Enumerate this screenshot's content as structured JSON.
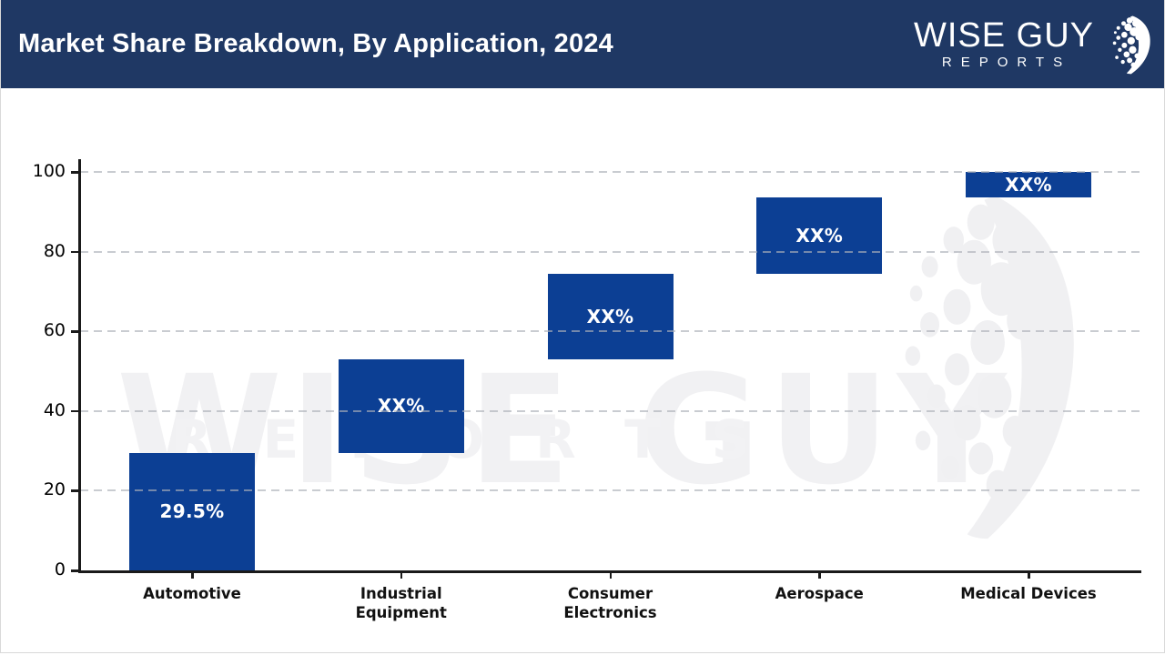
{
  "header": {
    "title": "Market Share Breakdown, By Application, 2024",
    "bg_color": "#1F3864",
    "logo": {
      "line1": "WISE GUY",
      "line2": "REPORTS"
    }
  },
  "watermark": {
    "line1": "WISE GUY",
    "line2": "REPORTS"
  },
  "chart_data": {
    "type": "bar",
    "subtype": "waterfall",
    "title": "Market Share Breakdown, By Application, 2024",
    "categories": [
      "Automotive",
      "Industrial Equipment",
      "Consumer Electronics",
      "Aerospace",
      "Medical Devices"
    ],
    "bars": [
      {
        "category": "Automotive",
        "label_lines": [
          "Automotive"
        ],
        "start": 0,
        "end": 29.5,
        "value": 29.5,
        "label": "29.5%"
      },
      {
        "category": "Industrial Equipment",
        "label_lines": [
          "Industrial",
          "Equipment"
        ],
        "start": 29.5,
        "end": 53,
        "value": 23.5,
        "label": "XX%"
      },
      {
        "category": "Consumer Electronics",
        "label_lines": [
          "Consumer",
          "Electronics"
        ],
        "start": 53,
        "end": 74.5,
        "value": 21.5,
        "label": "XX%"
      },
      {
        "category": "Aerospace",
        "label_lines": [
          "Aerospace"
        ],
        "start": 74.5,
        "end": 93.5,
        "value": 19,
        "label": "XX%"
      },
      {
        "category": "Medical Devices",
        "label_lines": [
          "Medical Devices"
        ],
        "start": 93.5,
        "end": 100,
        "value": 6.5,
        "label": "XX%"
      }
    ],
    "y_ticks": [
      0,
      20,
      40,
      60,
      80,
      100
    ],
    "ylim": [
      0,
      103
    ],
    "xlabel": "",
    "ylabel": "",
    "bar_color": "#0c3f94",
    "grid": "horizontal-dashed",
    "legend": "none"
  }
}
